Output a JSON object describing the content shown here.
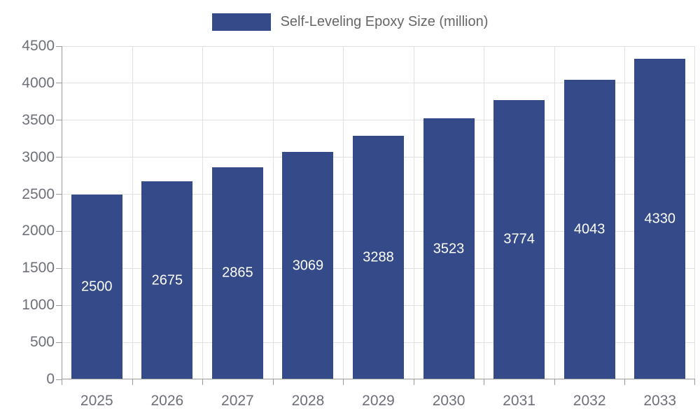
{
  "legend": {
    "label": "Self-Leveling Epoxy Size (million)"
  },
  "chart_data": {
    "type": "bar",
    "title": "Self-Leveling Epoxy Size (million)",
    "categories": [
      "2025",
      "2026",
      "2027",
      "2028",
      "2029",
      "2030",
      "2031",
      "2032",
      "2033"
    ],
    "values": [
      2500,
      2675,
      2865,
      3069,
      3288,
      3523,
      3774,
      4043,
      4330
    ],
    "xlabel": "",
    "ylabel": "",
    "ylim": [
      0,
      4500
    ],
    "yticks": [
      0,
      500,
      1000,
      1500,
      2000,
      2500,
      3000,
      3500,
      4000,
      4500
    ],
    "grid": true,
    "legend_position": "top",
    "value_labels": "inside-center",
    "colors": {
      "bar": "#354A88",
      "grid": "#E0E0E0",
      "axis_line": "#999999",
      "axis_text": "#6E7079",
      "legend_text": "#666666",
      "value_label": "#ffffff",
      "background": "#ffffff"
    }
  }
}
